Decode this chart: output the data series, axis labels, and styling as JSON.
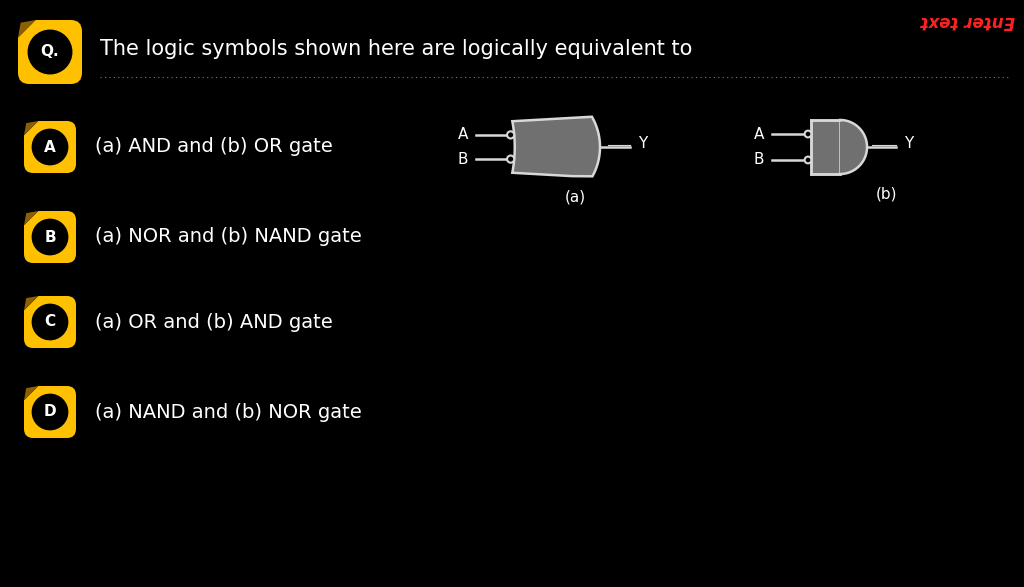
{
  "background_color": "#000000",
  "text_color": "#ffffff",
  "gold_color": "#FFC000",
  "gold_dark": "#8B6000",
  "gate_fill": "#707070",
  "gate_edge": "#d8d8d8",
  "question_text": "The logic symbols shown here are logically equivalent to",
  "options": [
    "(a) AND and (b) OR gate",
    "(a) NOR and (b) NAND gate",
    "(a) OR and (b) AND gate",
    "(a) NAND and (b) NOR gate"
  ],
  "option_labels": [
    "A",
    "B",
    "C",
    "D"
  ],
  "question_label": "Q.",
  "font_size_question": 15,
  "font_size_options": 14,
  "enter_text": "Enter text",
  "gate_label_a": "(a)",
  "gate_label_b": "(b)"
}
